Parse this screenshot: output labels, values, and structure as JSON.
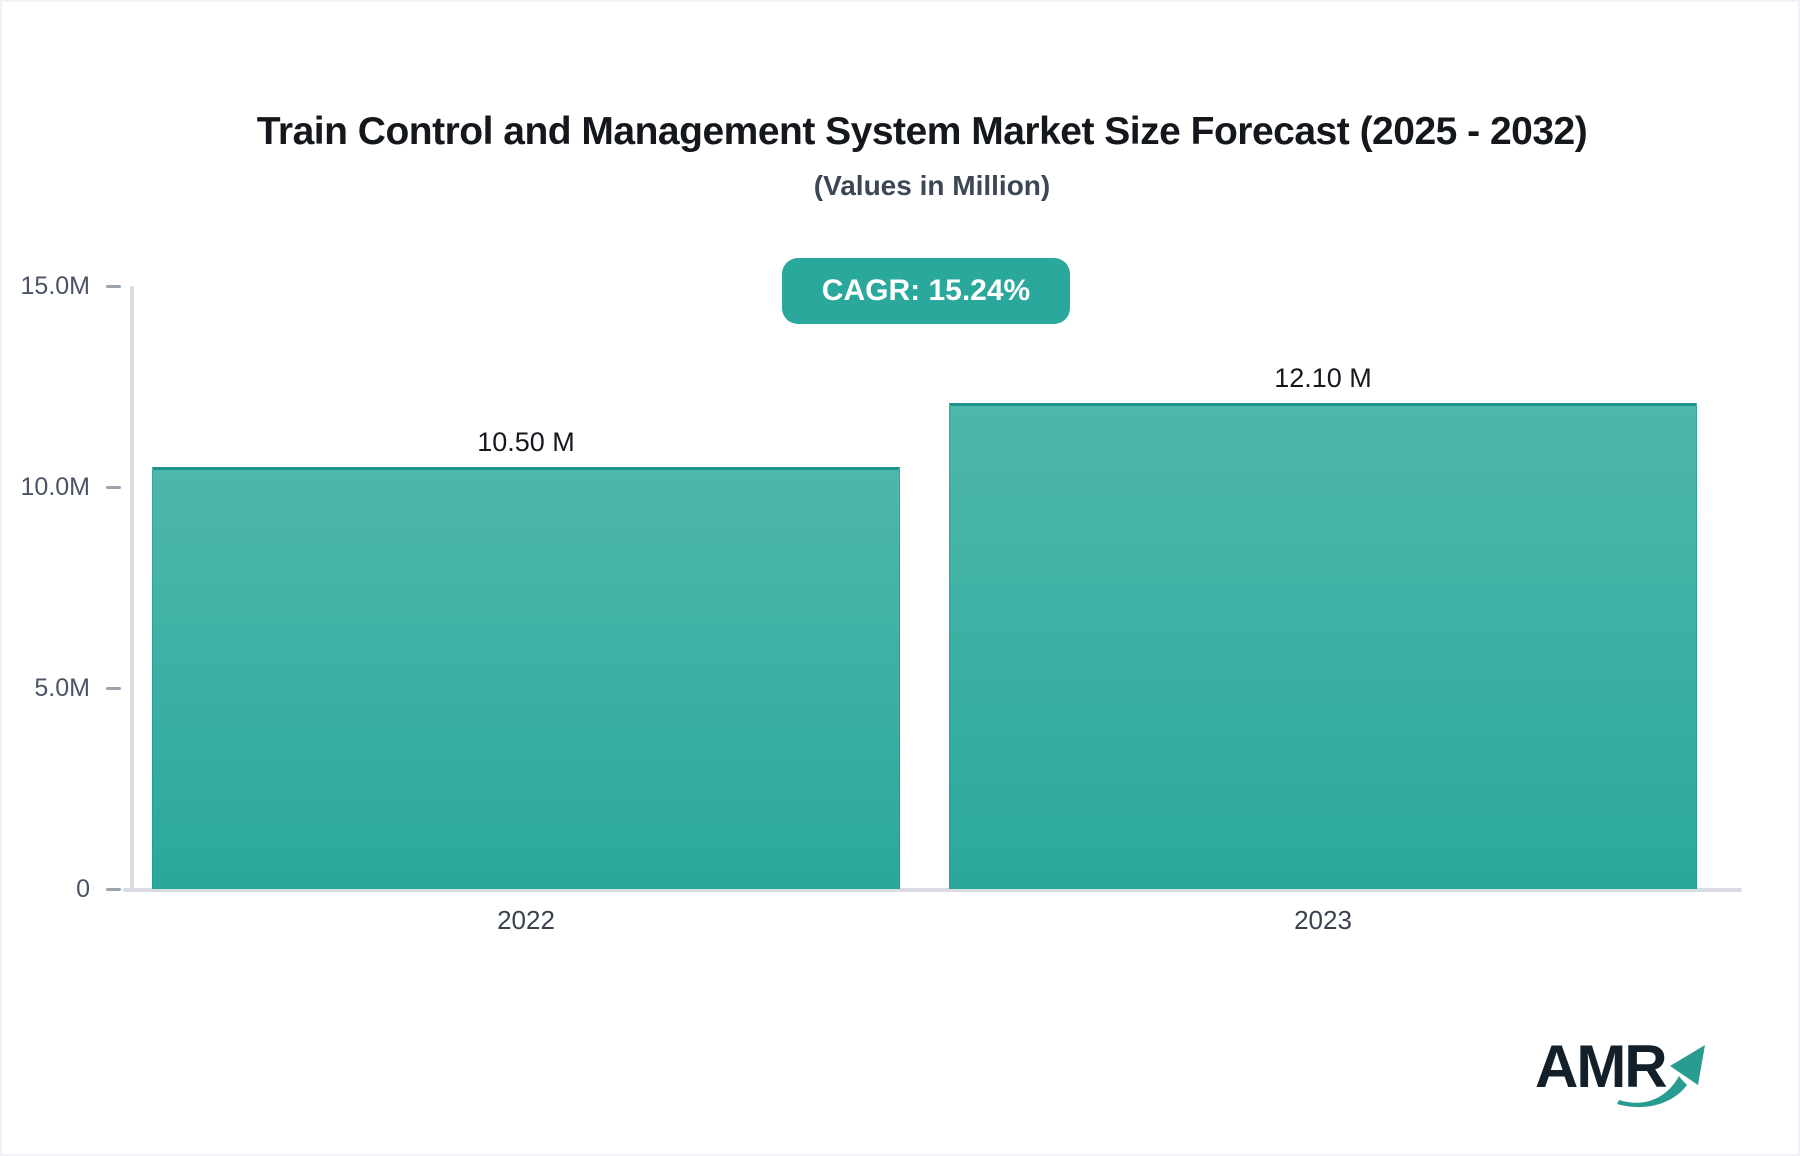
{
  "header": {
    "title": "Train Control and Management System Market Size Forecast (2025 - 2032)",
    "subtitle": "(Values in Million)",
    "cagr_label": "CAGR: 15.24%"
  },
  "chart_data": {
    "type": "bar",
    "title": "Train Control and Management System Market Size Forecast (2025 - 2032)",
    "subtitle": "(Values in Million)",
    "cagr_percent": 15.24,
    "unit": "Million",
    "categories": [
      "2022",
      "2023"
    ],
    "values": [
      10.5,
      12.1
    ],
    "bar_labels": [
      "10.50 M",
      "12.10 M"
    ],
    "ylim": [
      0,
      15
    ],
    "yticks": [
      {
        "value": 15,
        "label": "15.0M"
      },
      {
        "value": 10,
        "label": "10.0M"
      },
      {
        "value": 5,
        "label": "5.0M"
      },
      {
        "value": 0,
        "label": "0"
      }
    ],
    "grid": false,
    "legend": false
  },
  "branding": {
    "logo_text": "AMR"
  },
  "colors": {
    "badge_bg": "#2ba89c",
    "badge_text": "#ffffff",
    "bar_gradient_top": "#4eb7ac",
    "bar_gradient_bottom": "#2aa89c",
    "bar_top_border": "#1a938a",
    "bar_side_border": "rgba(21,138,130,0.4)",
    "axis_line": "#d8dbe1",
    "tick_dash": "#9aa3ae",
    "tick_text": "#4a5466",
    "title_text": "#14171c",
    "logo_arrow": "#2a9b91"
  }
}
